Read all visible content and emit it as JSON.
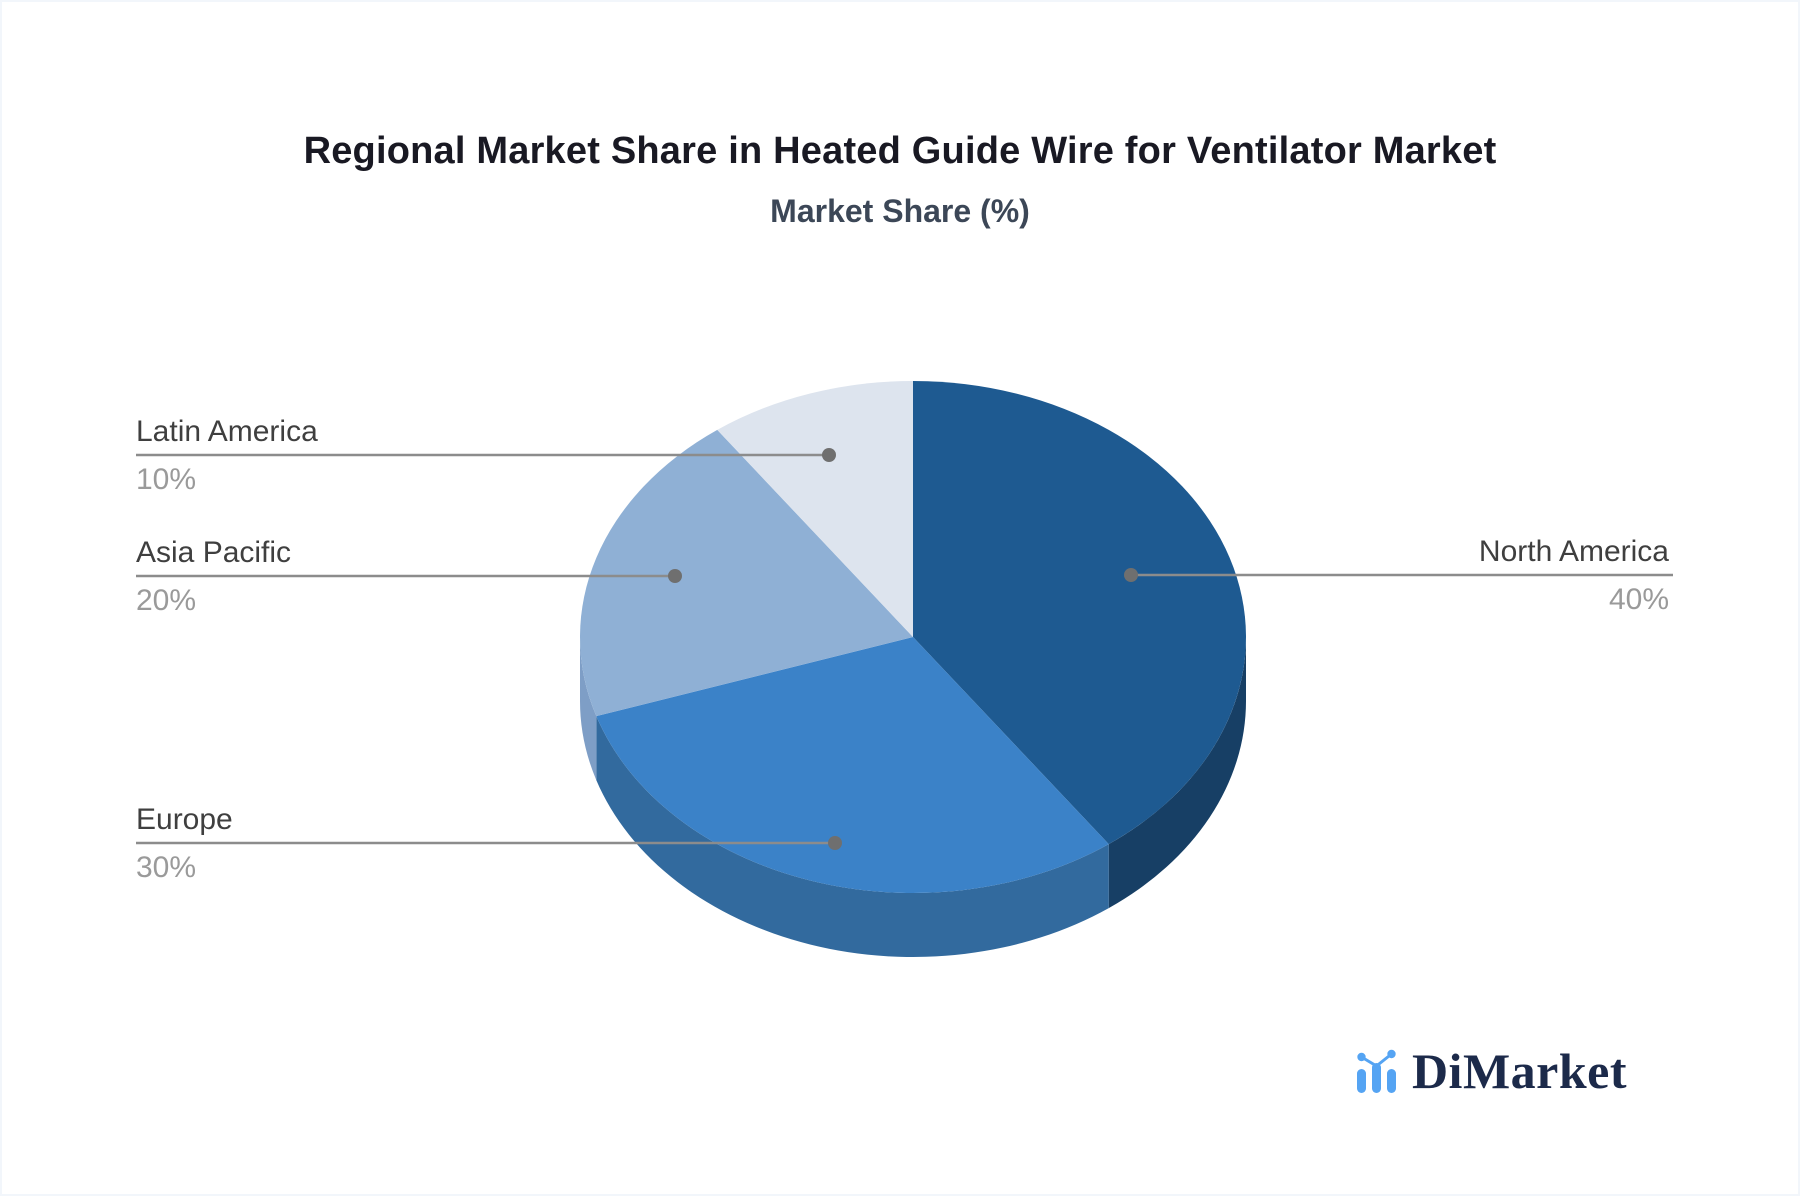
{
  "title": "Regional Market Share in Heated Guide Wire for Ventilator Market",
  "subtitle": "Market Share (%)",
  "watermark": {
    "text": "DiMarket",
    "icon": "bar-line-chart-icon",
    "icon_color": "#55a4f3",
    "text_color": "#1c2a4a"
  },
  "chart_data": {
    "type": "pie",
    "projection": "3d",
    "title": "Regional Market Share in Heated Guide Wire for Ventilator Market",
    "value_label": "Market Share (%)",
    "unit": "%",
    "direction": "clockwise",
    "start_angle_deg": 0,
    "legend_position": "callout-labels",
    "slices": [
      {
        "label": "North America",
        "value": 40,
        "display_value": "40%",
        "color": "#1e5a91",
        "side_color": "#173f65",
        "label_side": "right"
      },
      {
        "label": "Europe",
        "value": 30,
        "display_value": "30%",
        "color": "#3b82c8",
        "side_color": "#326a9e",
        "label_side": "left"
      },
      {
        "label": "Asia Pacific",
        "value": 20,
        "display_value": "20%",
        "color": "#8fb0d5",
        "side_color": "#7e9ec6",
        "label_side": "left"
      },
      {
        "label": "Latin America",
        "value": 10,
        "display_value": "10%",
        "color": "#dde4ee",
        "side_color": "#c3cfdf",
        "label_side": "left"
      }
    ],
    "leader_line_color": "#8c8c8c",
    "leader_dot_color": "#6f6f6f",
    "label_color": "#3f3f3f",
    "value_color": "#9a9a9a"
  }
}
